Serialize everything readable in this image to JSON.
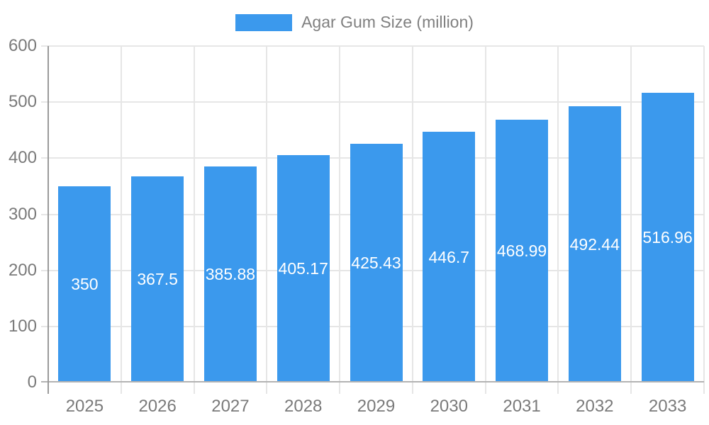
{
  "chart_data": {
    "type": "bar",
    "title": "",
    "categories": [
      "2025",
      "2026",
      "2027",
      "2028",
      "2029",
      "2030",
      "2031",
      "2032",
      "2033"
    ],
    "series": [
      {
        "name": "Agar Gum Size (million)",
        "values": [
          350,
          367.5,
          385.88,
          405.17,
          425.43,
          446.7,
          468.99,
          492.44,
          516.96
        ]
      }
    ],
    "value_labels": [
      "350",
      "367.5",
      "385.88",
      "405.17",
      "425.43",
      "446.7",
      "468.99",
      "492.44",
      "516.96"
    ],
    "xlabel": "",
    "ylabel": "",
    "ylim": [
      0,
      600
    ],
    "yticks": [
      0,
      100,
      200,
      300,
      400,
      500,
      600
    ],
    "grid": true,
    "legend_position": "top",
    "colors": {
      "bar": "#3b99ed",
      "grid": "#e6e6e6",
      "axis_line": "#9a9a9a",
      "baseline": "#b3b3b3",
      "text": "#7a7a7a",
      "bar_label": "#ffffff"
    }
  }
}
